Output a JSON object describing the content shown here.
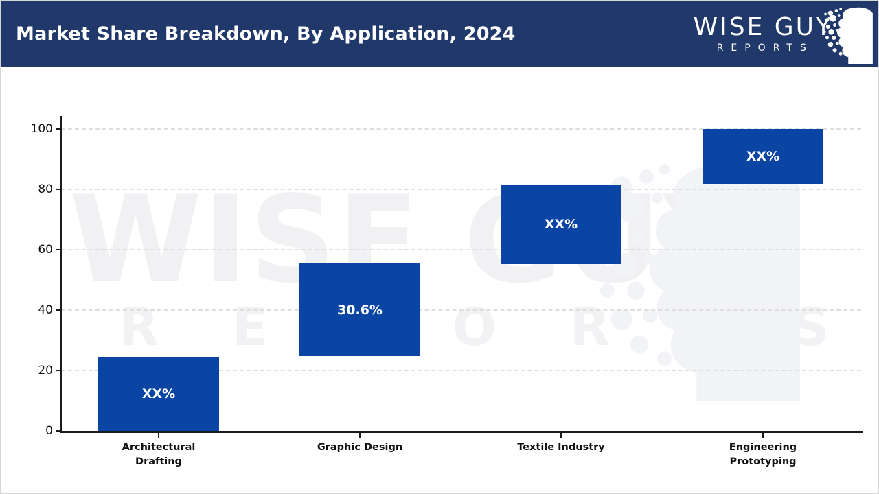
{
  "header": {
    "title": "Market Share Breakdown, By Application, 2024",
    "logo": {
      "line1": "WISE GUY",
      "line2": "REPORTS"
    }
  },
  "watermark": {
    "line1": "WISE GUY",
    "line2": "R E P O R T S"
  },
  "chart_data": {
    "type": "bar",
    "variant": "floating-segment-waterfall",
    "title": "Market Share Breakdown, By Application, 2024",
    "categories": [
      "Architectural Drafting",
      "Graphic Design",
      "Textile Industry",
      "Engineering Prototyping"
    ],
    "categories_display": [
      [
        "Architectural",
        "Drafting"
      ],
      [
        "Graphic Design"
      ],
      [
        "Textile Industry"
      ],
      [
        "Engineering",
        "Prototyping"
      ]
    ],
    "segments": [
      {
        "category": "Architectural Drafting",
        "start": 0,
        "end": 24.5,
        "size": 24.5,
        "label": "XX%"
      },
      {
        "category": "Graphic Design",
        "start": 24.8,
        "end": 55.4,
        "size": 30.6,
        "label": "30.6%"
      },
      {
        "category": "Textile Industry",
        "start": 55.2,
        "end": 81.6,
        "size": 26.4,
        "label": "XX%"
      },
      {
        "category": "Engineering Prototyping",
        "start": 81.8,
        "end": 100,
        "size": 18.2,
        "label": "XX%"
      }
    ],
    "yticks": [
      0,
      20,
      40,
      60,
      80,
      100
    ],
    "ylim": [
      0,
      100
    ],
    "xlabel": "",
    "ylabel": "",
    "grid": "horizontal-dashed",
    "legend": "none"
  },
  "colors": {
    "header_bg": "#21386b",
    "bar": "#0a45a4",
    "bar_label": "#ffffff",
    "grid": "#dedede",
    "axis": "#1a1a1a",
    "watermark": "#f1f1f3",
    "page_border": "#d5d5d5"
  }
}
